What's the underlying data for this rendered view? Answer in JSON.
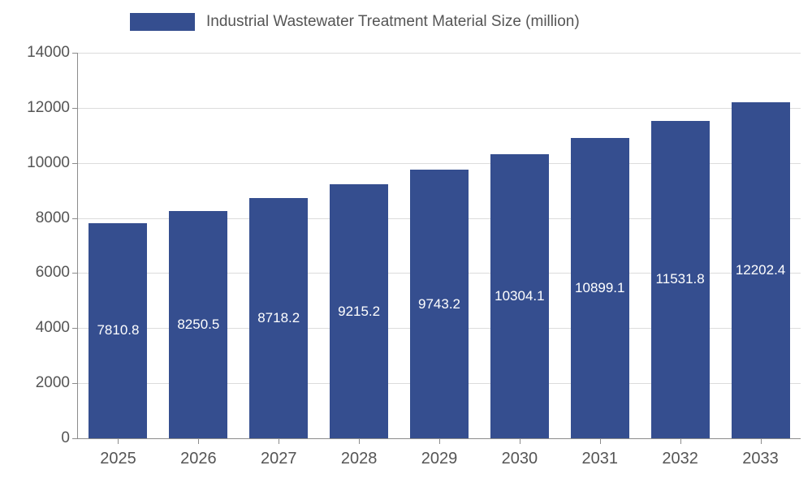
{
  "chart_data": {
    "type": "bar",
    "title": "Industrial Wastewater Treatment Material Size (million)",
    "categories": [
      "2025",
      "2026",
      "2027",
      "2028",
      "2029",
      "2030",
      "2031",
      "2032",
      "2033"
    ],
    "values": [
      7810.8,
      8250.5,
      8718.2,
      9215.2,
      9743.2,
      10304.1,
      10899.1,
      11531.8,
      12202.4
    ],
    "value_labels": [
      "7810.8",
      "8250.5",
      "8718.2",
      "9215.2",
      "9743.2",
      "10304.1",
      "10899.1",
      "11531.8",
      "12202.4"
    ],
    "xlabel": "",
    "ylabel": "",
    "ylim": [
      0,
      14000
    ],
    "yticks": [
      0,
      2000,
      4000,
      6000,
      8000,
      10000,
      12000,
      14000
    ],
    "grid": "horizontal",
    "legend_position": "top",
    "bar_color": "#354e8f",
    "value_label_color": "#ffffff",
    "axis_text_color": "#555555"
  }
}
